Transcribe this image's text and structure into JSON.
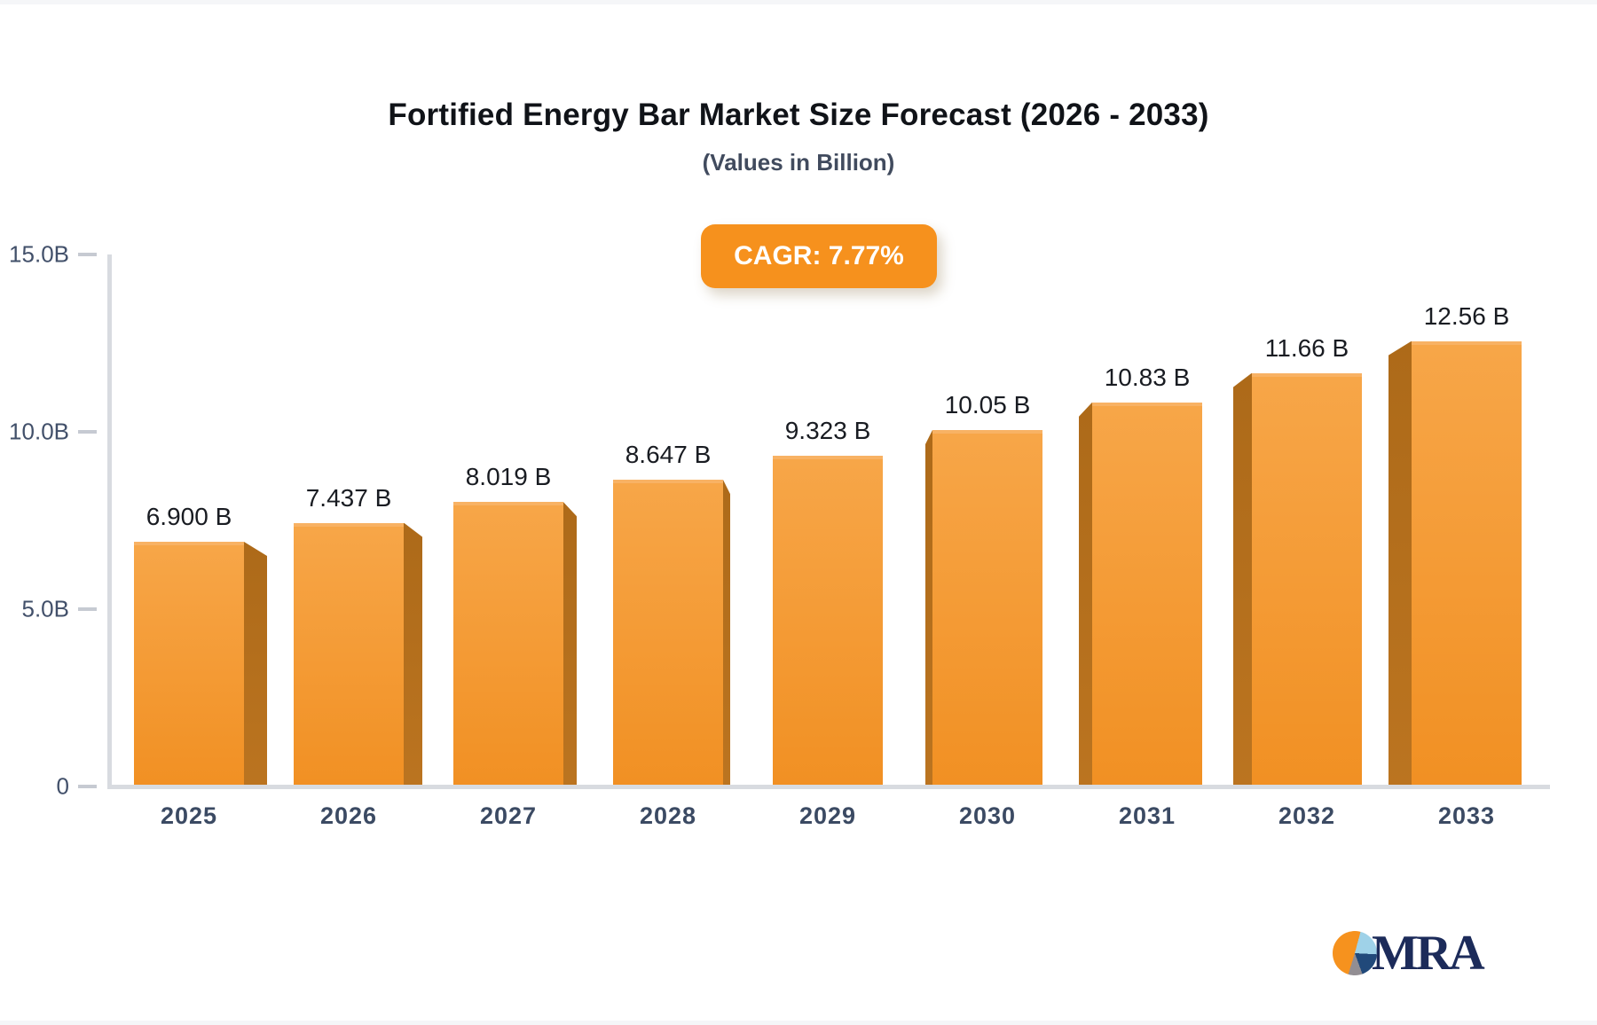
{
  "title": "Fortified Energy Bar Market Size Forecast (2026 - 2033)",
  "subtitle": "(Values in Billion)",
  "badge": {
    "label": "CAGR: 7.77%"
  },
  "logo": {
    "text": "MRA"
  },
  "colors": {
    "bar_gradient_top": "#f7a648",
    "bar_gradient_bottom": "#f19023",
    "bar_side": "#b26d1b",
    "badge_bg": "#f6911d",
    "axis_line": "#d8dbe0",
    "axis_label": "#42506a",
    "value_label": "#191c22",
    "logo_navy": "#1c2b5a",
    "logo_blue": "#9fd2e8",
    "logo_gray": "#928e93",
    "logo_orange": "#f6921e"
  },
  "chart_data": {
    "type": "bar",
    "title": "Fortified Energy Bar Market Size Forecast (2026 - 2033)",
    "subtitle": "(Values in Billion)",
    "cagr": "7.77%",
    "categories": [
      "2025",
      "2026",
      "2027",
      "2028",
      "2029",
      "2030",
      "2031",
      "2032",
      "2033"
    ],
    "values": [
      6.9,
      7.437,
      8.019,
      8.647,
      9.323,
      10.05,
      10.83,
      11.66,
      12.56
    ],
    "value_labels": [
      "6.900 B",
      "7.437 B",
      "8.019 B",
      "8.647 B",
      "9.323 B",
      "10.05 B",
      "10.83 B",
      "11.66 B",
      "12.56 B"
    ],
    "y_ticks": [
      "15.0B",
      "10.0B",
      "5.0B",
      "0"
    ],
    "y_tick_values": [
      15,
      10,
      5,
      0
    ],
    "ylim": [
      0,
      15
    ],
    "xlabel": "",
    "ylabel": "",
    "grid": false,
    "legend": "none"
  }
}
